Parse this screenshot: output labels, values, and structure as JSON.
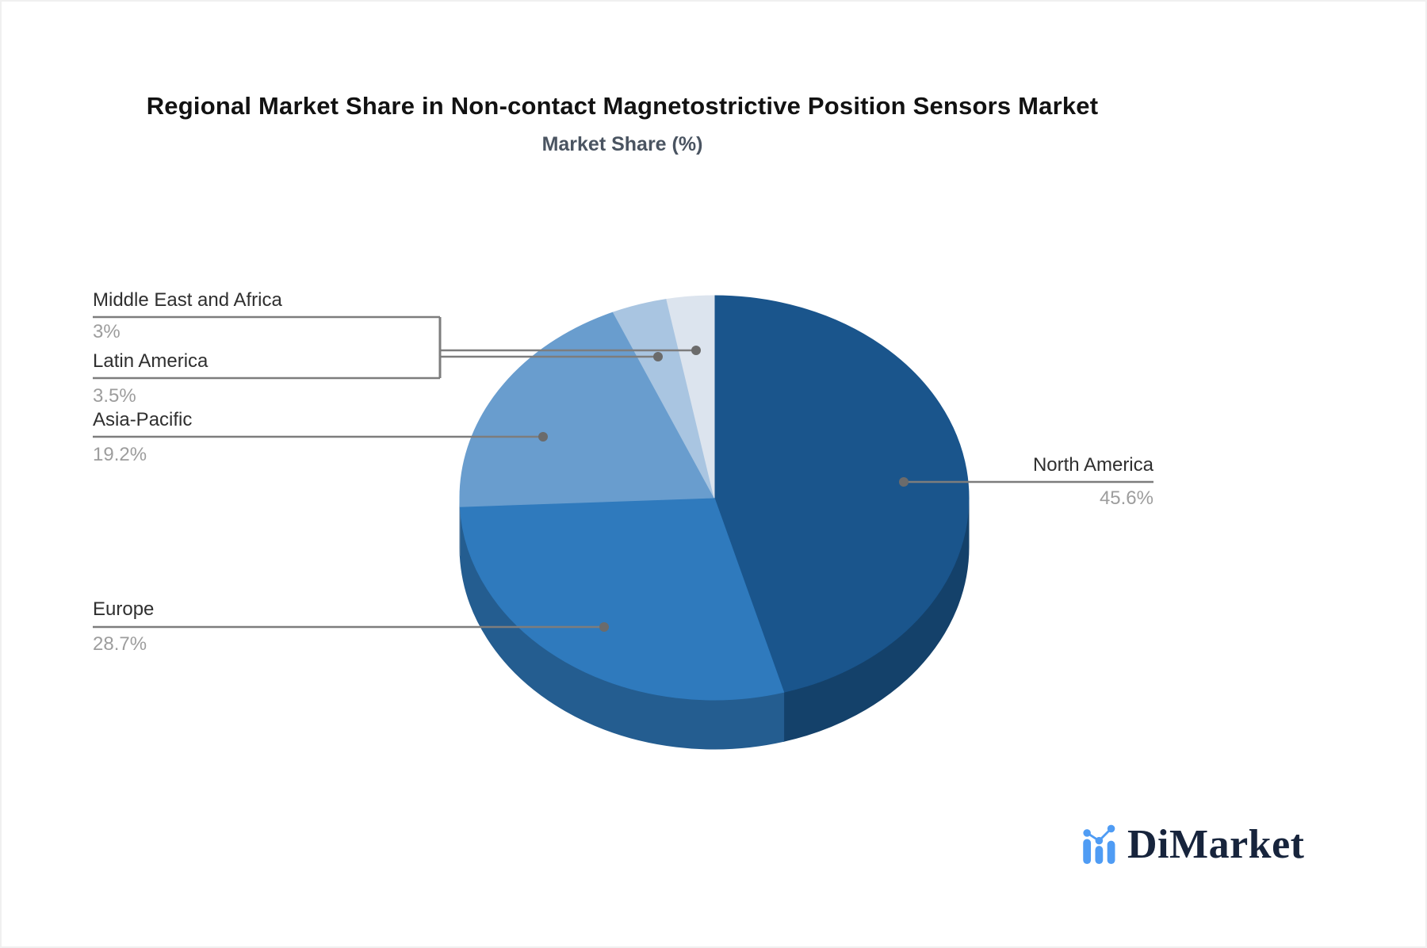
{
  "chart_data": {
    "type": "pie",
    "style": "3d",
    "title": "Regional Market Share in Non-contact Magnetostrictive Position Sensors Market",
    "subtitle": "Market Share (%)",
    "unit": "%",
    "start_angle_deg": -90,
    "direction": "clockwise",
    "legend_position": "none",
    "slices": [
      {
        "label": "North America",
        "value": 45.6,
        "display": "45.6%",
        "color": "#1A558C"
      },
      {
        "label": "Europe",
        "value": 28.7,
        "display": "28.7%",
        "color": "#2F7ABD"
      },
      {
        "label": "Asia-Pacific",
        "value": 19.2,
        "display": "19.2%",
        "color": "#699DCE"
      },
      {
        "label": "Latin America",
        "value": 3.5,
        "display": "3.5%",
        "color": "#A9C5E1"
      },
      {
        "label": "Middle East and Africa",
        "value": 3.0,
        "display": "3%",
        "color": "#DCE4EE"
      }
    ],
    "leader_line_color": "#7d7d7d",
    "label_color": "#2f2f2f",
    "value_color": "#9d9d9d"
  },
  "logo": {
    "text": "DiMarket",
    "icon": "bar-line-chart-icon",
    "icon_color": "#4f9cf4",
    "text_color": "#17243c"
  }
}
